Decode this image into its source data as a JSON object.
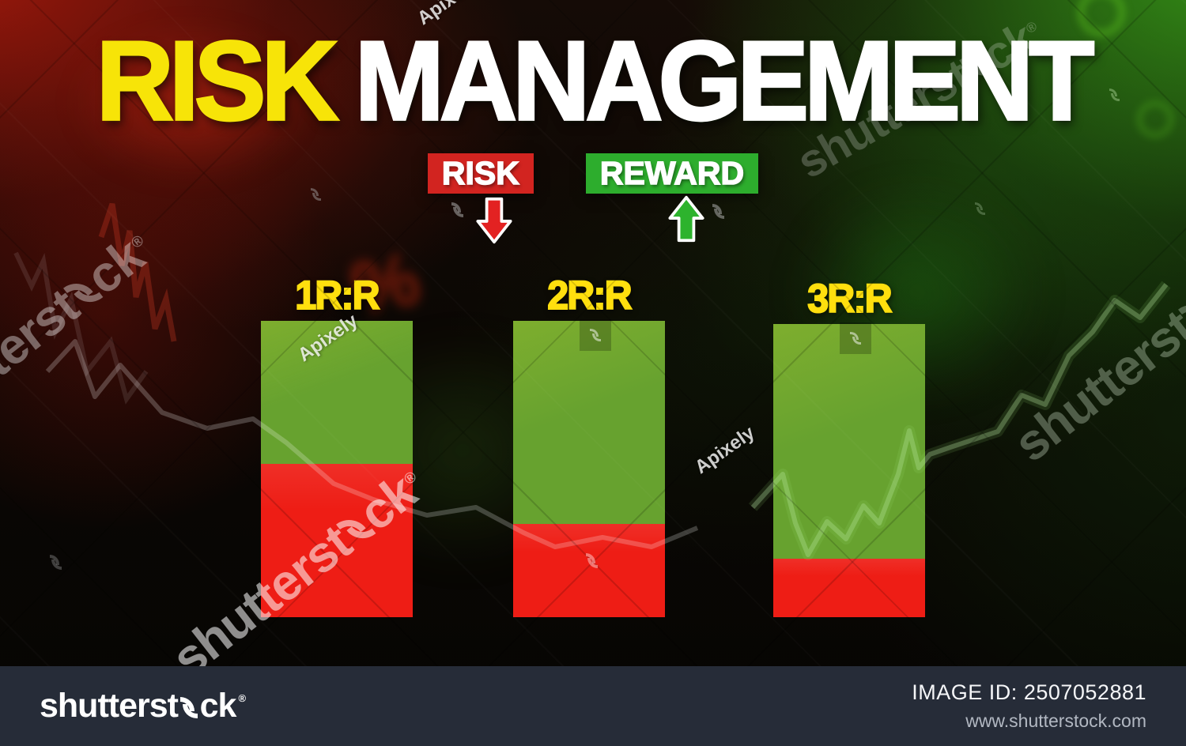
{
  "title": {
    "part1": "RISK",
    "part2": "MANAGEMENT"
  },
  "legend": {
    "risk_label": "RISK",
    "reward_label": "REWARD",
    "risk_arrow": "down-arrow",
    "reward_arrow": "up-arrow"
  },
  "bars": [
    {
      "label": "1R:R",
      "risk": 1,
      "reward": 1,
      "reward_frac": 0.483,
      "risk_frac": 0.517
    },
    {
      "label": "2R:R",
      "risk": 1,
      "reward": 2,
      "reward_frac": 0.685,
      "risk_frac": 0.315
    },
    {
      "label": "3R:R",
      "risk": 1,
      "reward": 3,
      "reward_frac": 0.8,
      "risk_frac": 0.2
    }
  ],
  "chart_data": {
    "type": "bar",
    "title": "RISK MANAGEMENT",
    "categories": [
      "1R:R",
      "2R:R",
      "3R:R"
    ],
    "series": [
      {
        "name": "REWARD",
        "values": [
          1,
          2,
          3
        ],
        "color": "#67a22f",
        "position": "top"
      },
      {
        "name": "RISK",
        "values": [
          1,
          1,
          1
        ],
        "color": "#ee1d15",
        "position": "bottom"
      }
    ],
    "legend_position": "top-center",
    "grid": false,
    "note": "stacked columns of equal height; green reward portion grows with ratio, red risk portion shrinks"
  },
  "watermarks": {
    "brand_prefix": "shutterst",
    "brand_suffix": "ck",
    "reg_symbol": "®",
    "producer": "Apixely"
  },
  "footer": {
    "logo_prefix": "shutterst",
    "logo_suffix": "ck",
    "reg": "®",
    "image_id_label": "IMAGE ID:",
    "image_id": "2507052881",
    "url": "www.shutterstock.com"
  },
  "decor": {
    "percent_glyph": "%"
  },
  "colors": {
    "title_yellow": "#f7e408",
    "label_yellow": "#ffdf0e",
    "risk_red": "#d22420",
    "reward_green": "#2dad2d",
    "bar_green": "#67a22f",
    "bar_red": "#ee1d15",
    "footer_bg": "#262c38"
  }
}
